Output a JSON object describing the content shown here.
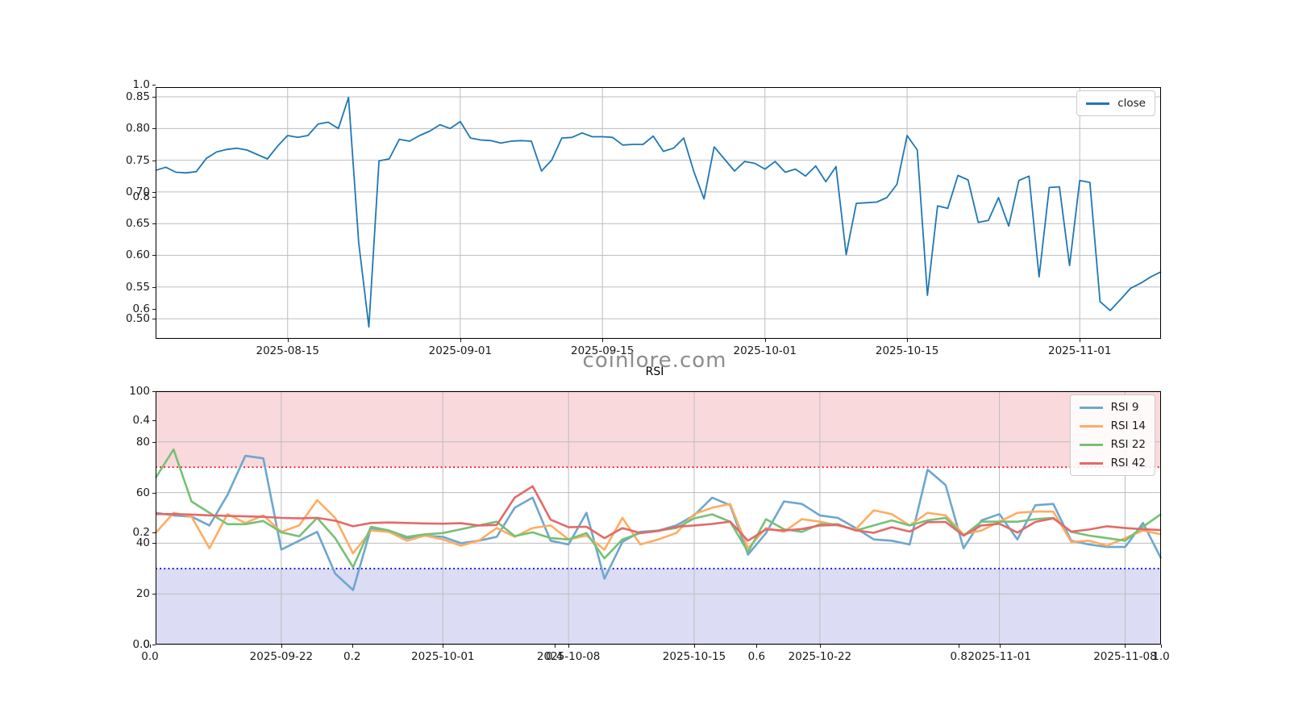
{
  "watermark": "coinlore.com",
  "outer_axes": {
    "x_tick_labels": [
      "0.0",
      "0.2",
      "0.4",
      "0.6",
      "0.8",
      "1.0"
    ],
    "y_tick_labels": [
      "1.0",
      "0.8",
      "0.6",
      "0.4",
      "0.2",
      "0.0"
    ]
  },
  "chart_data": [
    {
      "type": "line",
      "name": "price",
      "title": "",
      "grid": true,
      "legend_position": "upper right",
      "start_date": "2025-08-02",
      "frequency": "daily",
      "x_tick_labels": [
        "2025-08-15",
        "2025-09-01",
        "2025-09-15",
        "2025-10-01",
        "2025-10-15",
        "2025-11-01"
      ],
      "y_ticks": [
        0.5,
        0.55,
        0.6,
        0.65,
        0.7,
        0.75,
        0.8,
        0.85
      ],
      "y_tick_labels": [
        "0.50",
        "0.55",
        "0.60",
        "0.65",
        "0.70",
        "0.75",
        "0.80",
        "0.85"
      ],
      "ylim": [
        0.4683,
        0.8653
      ],
      "series": [
        {
          "name": "close",
          "color": "#1f77b4",
          "width": 1.8,
          "values": [
            0.734,
            0.739,
            0.731,
            0.73,
            0.732,
            0.753,
            0.763,
            0.767,
            0.769,
            0.766,
            0.759,
            0.752,
            0.772,
            0.789,
            0.786,
            0.789,
            0.807,
            0.81,
            0.8,
            0.849,
            0.62,
            0.487,
            0.749,
            0.752,
            0.783,
            0.78,
            0.789,
            0.796,
            0.806,
            0.8,
            0.811,
            0.785,
            0.782,
            0.781,
            0.777,
            0.78,
            0.781,
            0.78,
            0.733,
            0.75,
            0.785,
            0.786,
            0.793,
            0.787,
            0.787,
            0.786,
            0.774,
            0.775,
            0.775,
            0.788,
            0.764,
            0.769,
            0.785,
            0.732,
            0.689,
            0.771,
            0.752,
            0.733,
            0.748,
            0.745,
            0.736,
            0.748,
            0.731,
            0.736,
            0.725,
            0.741,
            0.716,
            0.74,
            0.601,
            0.682,
            0.683,
            0.684,
            0.691,
            0.712,
            0.789,
            0.766,
            0.537,
            0.678,
            0.674,
            0.726,
            0.719,
            0.652,
            0.655,
            0.691,
            0.646,
            0.718,
            0.725,
            0.566,
            0.707,
            0.708,
            0.584,
            0.718,
            0.715,
            0.527,
            0.513,
            0.53,
            0.548,
            0.556,
            0.566,
            0.574
          ]
        }
      ]
    },
    {
      "type": "line",
      "name": "rsi",
      "title": "RSI",
      "grid": true,
      "legend_position": "upper right",
      "start_date": "2025-09-15",
      "frequency": "daily",
      "x_tick_labels": [
        "2025-09-22",
        "2025-10-01",
        "2025-10-08",
        "2025-10-15",
        "2025-10-22",
        "2025-11-01",
        "2025-11-08"
      ],
      "y_ticks": [
        0,
        20,
        40,
        60,
        80,
        100
      ],
      "y_tick_labels": [
        "0",
        "20",
        "40",
        "60",
        "80",
        "100"
      ],
      "ylim": [
        0,
        100
      ],
      "thresholds": {
        "overbought": 70,
        "oversold": 30,
        "overbought_line_color": "#ee1122",
        "oversold_line_color": "#0000dd",
        "overbought_fill": "#f9d9dc",
        "oversold_fill": "#dcdcf4"
      },
      "series": [
        {
          "name": "RSI 9",
          "color": "#6da7ce",
          "width": 2.6,
          "values": [
            52,
            51,
            50.5,
            47,
            59,
            74.5,
            73.5,
            37.5,
            41,
            44.5,
            28,
            21.5,
            46,
            44.5,
            42,
            43,
            42.5,
            40,
            41,
            42.5,
            54,
            58,
            41,
            39.5,
            52,
            26,
            40.5,
            44.5,
            45,
            47,
            51,
            58,
            55,
            35.5,
            44,
            56.5,
            55.5,
            51,
            50,
            46,
            41.5,
            41,
            39.5,
            69,
            63,
            38,
            49,
            51.5,
            41.5,
            55,
            55.5,
            41,
            39.5,
            38.5,
            38.5,
            48,
            34
          ]
        },
        {
          "name": "RSI 14",
          "color": "#ffac62",
          "width": 2.6,
          "values": [
            44,
            52,
            50.5,
            38,
            51.5,
            48,
            51,
            44.5,
            47,
            57,
            50,
            36,
            45,
            44.5,
            41,
            43,
            41.5,
            39,
            41,
            46,
            42.5,
            46,
            47,
            41.5,
            43,
            37.5,
            50,
            39.5,
            41.5,
            44,
            51.5,
            54,
            55.5,
            38,
            46,
            44.5,
            49.5,
            48.5,
            47,
            45.5,
            53,
            51.5,
            47,
            52,
            51,
            43.5,
            45,
            48.5,
            52,
            52.5,
            52.5,
            40.5,
            41,
            39,
            42,
            45,
            43.5
          ]
        },
        {
          "name": "RSI 22",
          "color": "#76c176",
          "width": 2.6,
          "values": [
            65.8,
            77,
            56.5,
            52,
            47.5,
            47.5,
            48.8,
            44.3,
            42.7,
            50,
            42,
            30.5,
            46.5,
            45,
            42.5,
            43.5,
            44,
            45.5,
            47,
            48.5,
            42.8,
            44.3,
            42,
            41.5,
            44,
            34,
            41.5,
            44,
            45,
            46,
            49.8,
            51.4,
            48.5,
            36.5,
            49.5,
            45.5,
            44.5,
            47.5,
            47.5,
            45,
            47,
            49,
            47,
            49,
            50,
            43,
            48.5,
            48.5,
            48.5,
            49.5,
            50,
            44.5,
            43,
            42,
            41,
            46.5,
            51.5
          ]
        },
        {
          "name": "RSI 42",
          "color": "#e46969",
          "width": 2.6,
          "values": [
            51.5,
            51.5,
            51.3,
            51,
            50.8,
            50.6,
            50.4,
            50,
            49.8,
            50,
            48.9,
            46.7,
            48,
            48.2,
            48,
            47.8,
            47.7,
            47.9,
            47,
            47.2,
            58,
            62.5,
            49.3,
            46.3,
            46.5,
            42,
            46,
            44,
            44.8,
            46.5,
            47,
            47.6,
            48.5,
            41,
            45.5,
            45,
            45.6,
            47,
            47.2,
            45.1,
            44.1,
            46.3,
            44.6,
            48.3,
            48.4,
            43,
            47,
            47.7,
            44.2,
            48.4,
            49.8,
            44.6,
            45.4,
            46.7,
            46,
            45.5,
            45.2
          ]
        }
      ]
    }
  ]
}
